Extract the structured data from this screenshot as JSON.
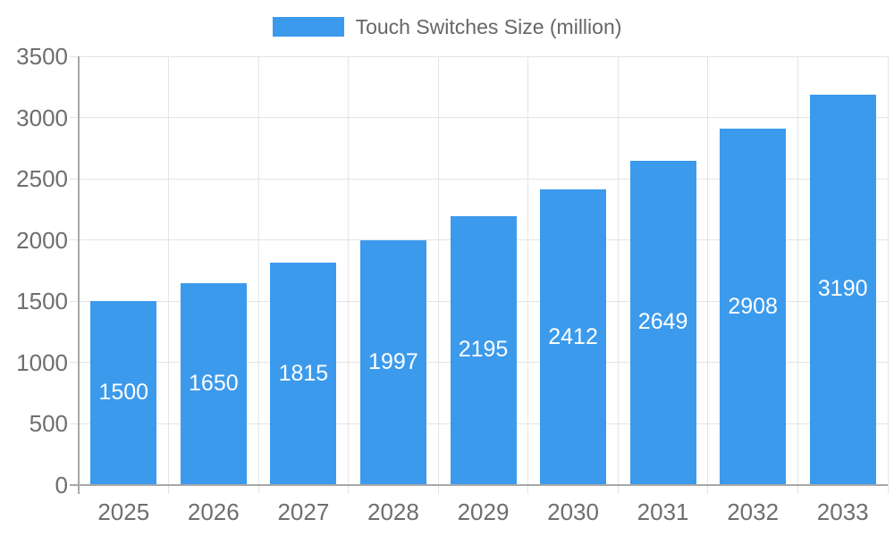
{
  "legend": {
    "label": "Touch Switches Size (million)"
  },
  "chart_data": {
    "type": "bar",
    "title": "Touch Switches Size (million)",
    "series_name": "Touch Switches Size (million)",
    "categories": [
      "2025",
      "2026",
      "2027",
      "2028",
      "2029",
      "2030",
      "2031",
      "2032",
      "2033"
    ],
    "values": [
      1500,
      1650,
      1815,
      1997,
      2195,
      2412,
      2649,
      2908,
      3190
    ],
    "value_labels_shown": true,
    "xlabel": "",
    "ylabel": "",
    "ylim": [
      0,
      3500
    ],
    "ytick_interval": 500,
    "ytick_labels": [
      "0",
      "500",
      "1000",
      "1500",
      "2000",
      "2500",
      "3000",
      "3500"
    ],
    "grid": true,
    "legend_position": "top-center"
  },
  "colors": {
    "bar": "#3C9AEC",
    "grid": "#E4E4E4",
    "axis": "#A8A8A8",
    "tick_label": "#6E6E6E",
    "legend_text": "#666666",
    "value_label": "#FFFFFF",
    "background": "#FFFFFF"
  }
}
